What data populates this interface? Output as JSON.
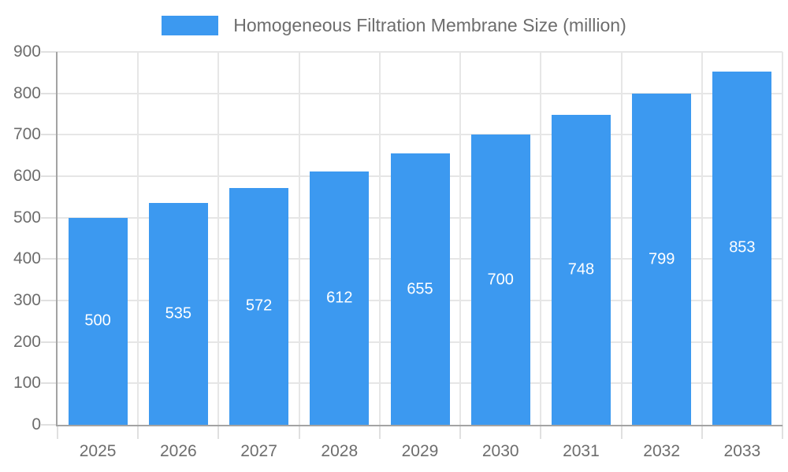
{
  "chart_data": {
    "type": "bar",
    "title": "Homogeneous Filtration Membrane Size (million)",
    "categories": [
      "2025",
      "2026",
      "2027",
      "2028",
      "2029",
      "2030",
      "2031",
      "2032",
      "2033"
    ],
    "values": [
      500,
      535,
      572,
      612,
      655,
      700,
      748,
      799,
      853
    ],
    "xlabel": "",
    "ylabel": "",
    "ylim": [
      0,
      900
    ],
    "ytick_step": 100,
    "ytick_labels": [
      "0",
      "100",
      "200",
      "300",
      "400",
      "500",
      "600",
      "700",
      "800",
      "900"
    ],
    "grid": true,
    "legend_position": "top-center",
    "value_labels_inside_bars": true
  },
  "colors": {
    "bar": "#3c99f0",
    "bar_value_label": "#ffffff",
    "gridline": "#e6e6e6",
    "tick": "#e0e0e0",
    "axis_line": "#a3a3a3",
    "tick_label": "#6d6d6d",
    "legend_text": "#6d6d6d",
    "background": "#ffffff"
  }
}
